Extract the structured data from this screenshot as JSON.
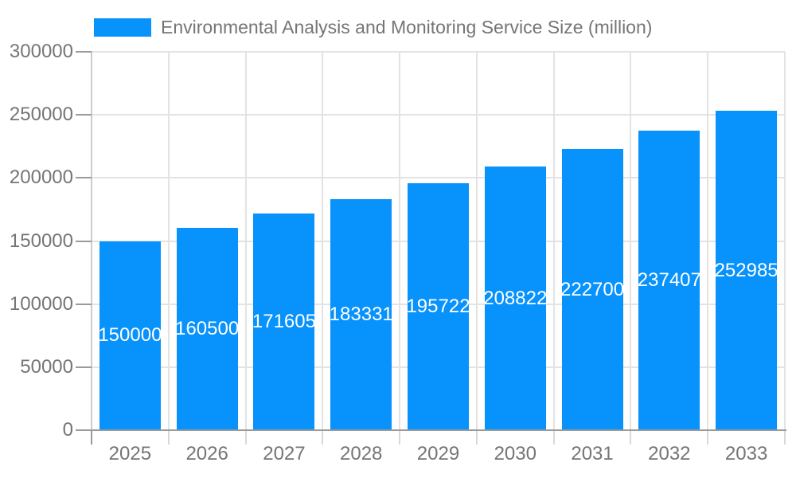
{
  "legend": {
    "label": "Environmental Analysis and Monitoring Service Size (million)",
    "swatch_color": "#0892fc"
  },
  "chart_data": {
    "type": "bar",
    "title": "Environmental Analysis and Monitoring Service Size (million)",
    "categories": [
      "2025",
      "2026",
      "2027",
      "2028",
      "2029",
      "2030",
      "2031",
      "2032",
      "2033"
    ],
    "values": [
      150000,
      160500,
      171605,
      183331,
      195722,
      208822,
      222700,
      237407,
      252985
    ],
    "value_labels": [
      "150000",
      "160500",
      "171605",
      "183331",
      "195722",
      "208822",
      "222700",
      "237407",
      "252985"
    ],
    "xlabel": "",
    "ylabel": "",
    "ylim": [
      0,
      300000
    ],
    "ytick_step": 50000,
    "ytick_labels": [
      "0",
      "50000",
      "100000",
      "150000",
      "200000",
      "250000",
      "300000"
    ],
    "grid": true,
    "legend_position": "top",
    "bar_color": "#0892fc",
    "value_label_color": "#ffffff"
  },
  "colors": {
    "bar": "#0892fc",
    "gridline": "#e3e3e3",
    "axis": "#9a9a9a",
    "tick_text": "#757575",
    "value_text": "#ffffff",
    "background": "#ffffff"
  }
}
